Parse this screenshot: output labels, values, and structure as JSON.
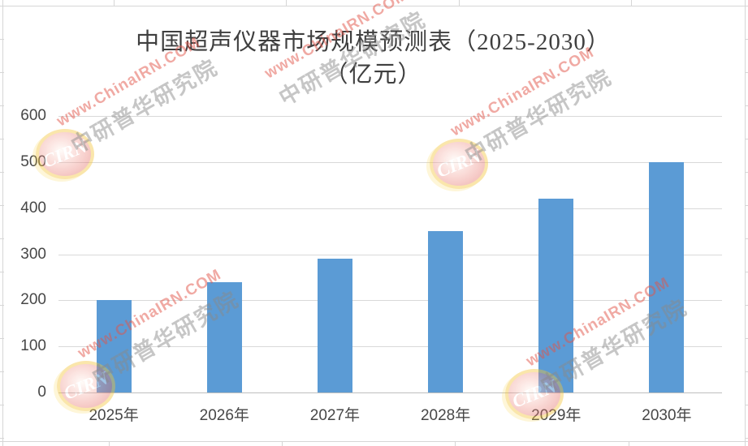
{
  "chart_data": {
    "type": "bar",
    "title": "中国超声仪器市场规模预测表（2025-2030）（亿元）",
    "title_line1": "中国超声仪器市场规模预测表（2025-2030）",
    "title_line2": "（亿元）",
    "unit": "亿元",
    "categories": [
      "2025年",
      "2026年",
      "2027年",
      "2028年",
      "2029年",
      "2030年"
    ],
    "values": [
      200,
      240,
      290,
      350,
      420,
      500
    ],
    "xlabel": "",
    "ylabel": "",
    "ylim": [
      0,
      600
    ],
    "ytick_step": 100,
    "yticks": [
      0,
      100,
      200,
      300,
      400,
      500,
      600
    ],
    "grid": "horizontal",
    "legend": "none",
    "bar_color": "#5B9BD5"
  },
  "watermark": {
    "site_text": "www.ChinaIRN.COM",
    "org_text": "中研普华研究院",
    "logo_text": "CIRN",
    "site_color": "#E25549",
    "org_color": "#8A8A8A",
    "logo_ring_color": "#F4C438",
    "logo_fill_color": "#D8453E"
  },
  "colors": {
    "bar": "#5B9BD5",
    "gridline": "#D9D9D9",
    "axis_line": "#BFBFBF",
    "title_text": "#3F3F3F",
    "tick_text": "#474747",
    "sheet_grid": "#D6D6D6",
    "background": "#FFFFFF"
  }
}
